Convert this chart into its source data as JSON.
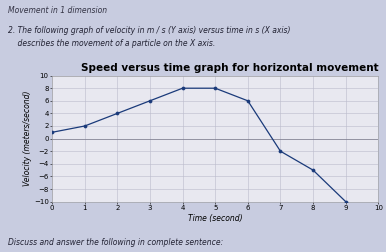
{
  "title": "Speed versus time graph for horizontal movement",
  "xlabel": "Time (second)",
  "ylabel": "Velocity (meters/second)",
  "x_data": [
    0,
    1,
    2,
    3,
    4,
    5,
    6,
    7,
    8,
    9
  ],
  "y_data": [
    1,
    2,
    4,
    6,
    8,
    8,
    6,
    -2,
    -5,
    -10
  ],
  "xlim": [
    0,
    10
  ],
  "ylim": [
    -10,
    10
  ],
  "xticks": [
    0,
    1,
    2,
    3,
    4,
    5,
    6,
    7,
    8,
    9,
    10
  ],
  "yticks": [
    -10,
    -8,
    -6,
    -4,
    -2,
    0,
    2,
    4,
    6,
    8,
    10
  ],
  "line_color": "#1a3a7a",
  "marker_color": "#1a3a7a",
  "grid_color": "#bbbbcc",
  "plot_bg_color": "#e8e8f0",
  "page_bg_color": "#c8cce0",
  "header_text": "Movement in 1 dimension",
  "sub_text1": "2. The following graph of velocity in m / s (Y axis) versus time in s (X axis)",
  "sub_text2": "    describes the movement of a particle on the X axis.",
  "footer_text": "Discuss and answer the following in complete sentence:",
  "title_fontsize": 7.5,
  "label_fontsize": 5.5,
  "tick_fontsize": 5,
  "header_fontsize": 5.5,
  "sub_fontsize": 5.5,
  "footer_fontsize": 5.5
}
